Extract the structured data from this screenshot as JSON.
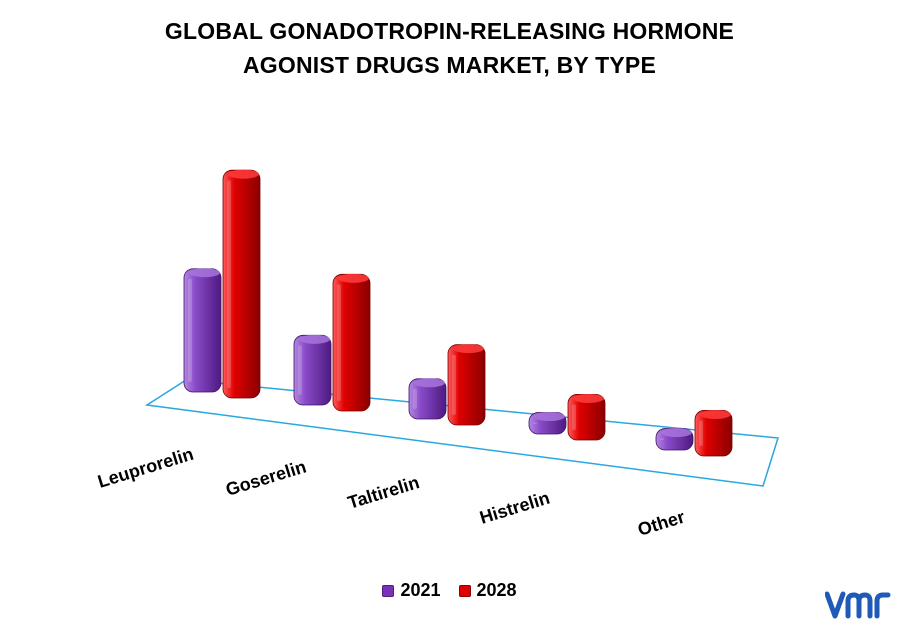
{
  "chart_data": {
    "type": "bar",
    "title_lines": [
      "GLOBAL GONADOTROPIN-RELEASING HORMONE",
      "AGONIST DRUGS MARKET, BY TYPE"
    ],
    "categories": [
      "Leuprorelin",
      "Goserelin",
      "Taltirelin",
      "Histrelin",
      "Other"
    ],
    "series": [
      {
        "name": "2021",
        "color": "#7a30b8",
        "values": [
          46,
          26,
          15,
          8,
          8
        ]
      },
      {
        "name": "2028",
        "color": "#dd0000",
        "values": [
          85,
          51,
          30,
          17,
          17
        ]
      }
    ],
    "ylim": [
      0,
      100
    ],
    "grid": false,
    "legend_position": "bottom-center",
    "floor_color": "#29a8df"
  },
  "legend": [
    {
      "label": "2021",
      "color": "#7a30b8"
    },
    {
      "label": "2028",
      "color": "#dd0000"
    }
  ],
  "brand": {
    "logo_icon": "vmr-logo-icon",
    "text": "vmr",
    "color": "#1f5ab8"
  }
}
